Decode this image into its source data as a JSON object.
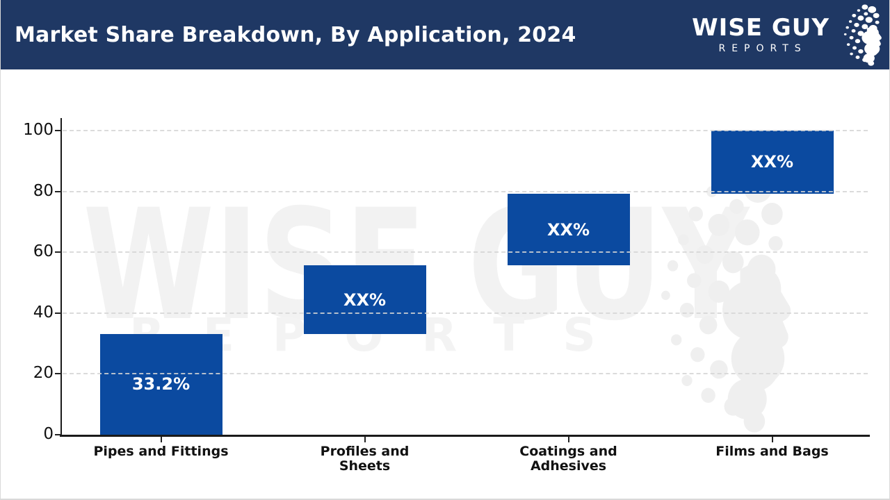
{
  "header": {
    "title": "Market Share Breakdown, By Application, 2024",
    "brand": {
      "name_top": "WISE GUY",
      "name_bottom": "REPORTS"
    }
  },
  "watermark": {
    "line1": "WISE GUY",
    "line2": "REPORTS"
  },
  "chart_data": {
    "type": "bar",
    "subtype": "waterfall",
    "title": "Market Share Breakdown, By Application, 2024",
    "categories": [
      "Pipes and Fittings",
      "Profiles and Sheets",
      "Coatings and Adhesives",
      "Films and Bags"
    ],
    "category_label_lines": [
      [
        "Pipes and Fittings"
      ],
      [
        "Profiles and",
        "Sheets"
      ],
      [
        "Coatings and",
        "Adhesives"
      ],
      [
        "Films and Bags"
      ]
    ],
    "segments": [
      {
        "category": "Pipes and Fittings",
        "start": 0,
        "end": 33.2,
        "label": "33.2%"
      },
      {
        "category": "Profiles and Sheets",
        "start": 33.2,
        "end": 55.6,
        "label": "XX%"
      },
      {
        "category": "Coatings and Adhesives",
        "start": 55.6,
        "end": 79.3,
        "label": "XX%"
      },
      {
        "category": "Films and Bags",
        "start": 79.3,
        "end": 100,
        "label": "XX%"
      }
    ],
    "y_ticks": [
      0,
      20,
      40,
      60,
      80,
      100
    ],
    "ylim": [
      0,
      104
    ],
    "xlabel": "",
    "ylabel": "",
    "grid": "horizontal-dashed",
    "legend": "none",
    "colors": {
      "bar": "#0b4aa0",
      "bar_label": "#ffffff",
      "header_bg": "#1f3864",
      "grid": "#d5d5d5",
      "axis": "#1a1a1a",
      "watermark": "#f2f2f2"
    }
  }
}
